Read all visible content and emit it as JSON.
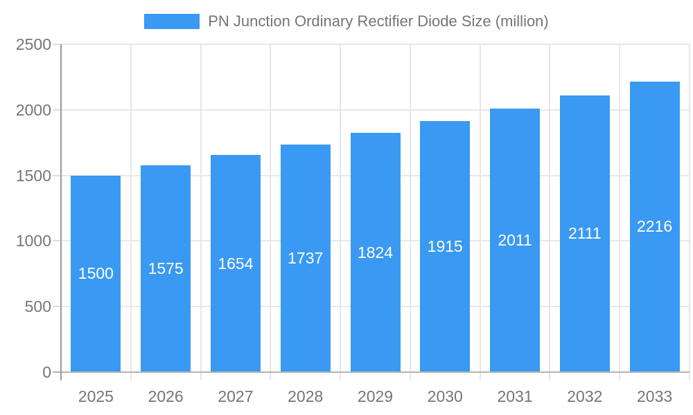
{
  "chart_data": {
    "type": "bar",
    "title": "PN Junction Ordinary Rectifier Diode Size (million)",
    "categories": [
      "2025",
      "2026",
      "2027",
      "2028",
      "2029",
      "2030",
      "2031",
      "2032",
      "2033"
    ],
    "values": [
      1500,
      1575,
      1654,
      1737,
      1824,
      1915,
      2011,
      2111,
      2216
    ],
    "xlabel": "",
    "ylabel": "",
    "ylim": [
      0,
      2500
    ],
    "yticks": [
      0,
      500,
      1000,
      1500,
      2000,
      2500
    ],
    "grid": true,
    "legend_position": "top-center",
    "value_labels": "inside-center",
    "bar_color": "#3a99f2",
    "value_label_color": "#ffffff",
    "axis_text_color": "#757575",
    "gridline_color": "#e8e8e8",
    "baseline_color": "#b3b3b3",
    "y_axis_line_color": "#9a9a9a"
  }
}
